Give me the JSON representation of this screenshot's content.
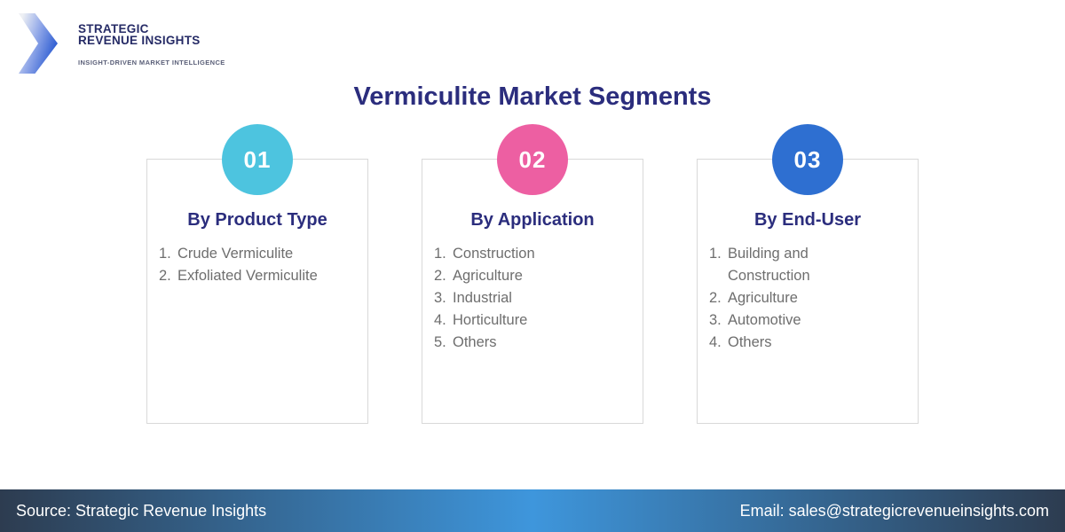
{
  "logo": {
    "line1": "STRATEGIC",
    "line2": "REVENUE INSIGHTS",
    "tagline": "INSIGHT-DRIVEN MARKET INTELLIGENCE"
  },
  "title": "Vermiculite Market Segments",
  "cards": [
    {
      "number": "01",
      "color": "#4dc4df",
      "heading": "By Product Type",
      "items": [
        {
          "num": "1.",
          "text": "Crude Vermiculite"
        },
        {
          "num": "2.",
          "text": "Exfoliated Vermiculite"
        }
      ]
    },
    {
      "number": "02",
      "color": "#ed5fa2",
      "heading": "By Application",
      "items": [
        {
          "num": "1.",
          "text": "Construction"
        },
        {
          "num": "2.",
          "text": "Agriculture"
        },
        {
          "num": "3.",
          "text": "Industrial"
        },
        {
          "num": "4.",
          "text": "Horticulture"
        },
        {
          "num": "5.",
          "text": "Others"
        }
      ]
    },
    {
      "number": "03",
      "color": "#2e6fd1",
      "heading": "By End-User",
      "items": [
        {
          "num": "1.",
          "text": "Building and\nConstruction"
        },
        {
          "num": "2.",
          "text": "Agriculture"
        },
        {
          "num": "3.",
          "text": "Automotive"
        },
        {
          "num": "4.",
          "text": "Others"
        }
      ]
    }
  ],
  "footer": {
    "source": "Source: Strategic Revenue Insights",
    "email": "Email: sales@strategicrevenueinsights.com"
  },
  "colors": {
    "title_navy": "#2b2d7d",
    "heading_navy": "#2b2d7d",
    "list_gray": "#6e6e6e",
    "card_border": "#d9d9d9",
    "circle_cyan": "#4dc4df",
    "circle_pink": "#ed5fa2",
    "circle_blue": "#2e6fd1",
    "footer_dark": "#2d3c50",
    "footer_light": "#3e96dc",
    "logo_navy": "#262b66",
    "logo_blue": "#2a5ad1"
  }
}
